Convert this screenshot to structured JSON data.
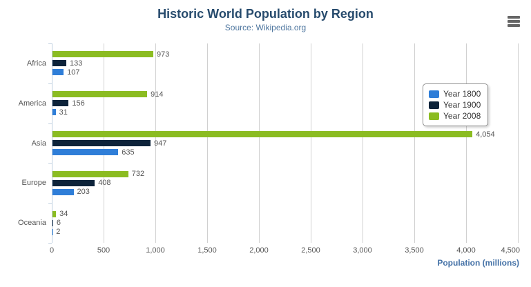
{
  "chart_data": {
    "type": "bar",
    "orientation": "horizontal",
    "title": "Historic World Population by Region",
    "subtitle": "Source: Wikipedia.org",
    "categories": [
      "Africa",
      "America",
      "Asia",
      "Europe",
      "Oceania"
    ],
    "series": [
      {
        "name": "Year 1800",
        "color": "#2f7ed8",
        "values": [
          107,
          31,
          635,
          203,
          2
        ]
      },
      {
        "name": "Year 1900",
        "color": "#0d233a",
        "values": [
          133,
          156,
          947,
          408,
          6
        ]
      },
      {
        "name": "Year 2008",
        "color": "#8bbc21",
        "values": [
          973,
          914,
          4054,
          732,
          34
        ]
      }
    ],
    "series_draw_order_top_to_bottom": [
      "Year 2008",
      "Year 1900",
      "Year 1800"
    ],
    "xlabel": "Population (millions)",
    "ylabel": "",
    "xlim": [
      0,
      4500
    ],
    "xtick_interval": 500,
    "xtick_labels": [
      "0",
      "500",
      "1,000",
      "1,500",
      "2,000",
      "2,500",
      "3,000",
      "3,500",
      "4,000",
      "4,500"
    ],
    "grid": true,
    "data_labels_visible": true,
    "legend": {
      "position": "middle-right-inside",
      "items": [
        "Year 1800",
        "Year 1900",
        "Year 2008"
      ]
    }
  },
  "icons": {
    "context_menu": "hamburger-menu-icon"
  },
  "colors": {
    "title": "#274b6d",
    "subtitle": "#4d759e",
    "axis_title": "#4572a7",
    "labels": "#555555",
    "gridline": "#d0d0d0",
    "axis_line": "#c0d0e0",
    "legend_border": "#909090",
    "menu_icon": "#666666",
    "series_blue": "#2f7ed8",
    "series_navy": "#0d233a",
    "series_green": "#8bbc21"
  }
}
